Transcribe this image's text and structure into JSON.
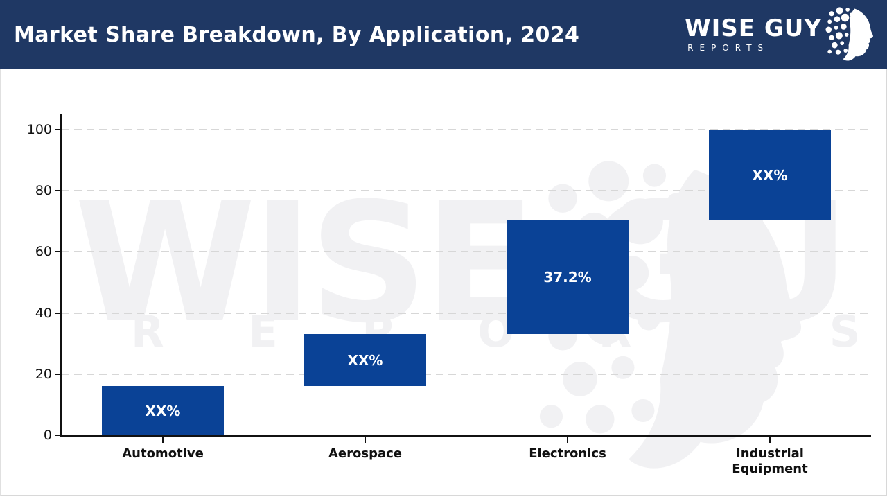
{
  "header": {
    "title": "Market Share Breakdown, By Application, 2024",
    "bg_color": "#1f3864",
    "logo": {
      "line1": "WISE GUY",
      "line2": "REPORTS"
    }
  },
  "watermark": {
    "line1": "WISE GU",
    "line2": "R E P O R T S"
  },
  "chart_data": {
    "type": "bar",
    "variant": "floating-waterfall",
    "title": "Market Share Breakdown, By Application, 2024",
    "categories": [
      "Automotive",
      "Aerospace",
      "Electronics",
      "Industrial Equipment"
    ],
    "bars": [
      {
        "category": "Automotive",
        "start": 0,
        "end": 16,
        "label": "XX%"
      },
      {
        "category": "Aerospace",
        "start": 16,
        "end": 33,
        "label": "XX%"
      },
      {
        "category": "Electronics",
        "start": 33,
        "end": 70.2,
        "label": "37.2%"
      },
      {
        "category": "Industrial Equipment",
        "start": 70.2,
        "end": 100,
        "label": "XX%"
      }
    ],
    "ylim": [
      0,
      100
    ],
    "yticks": [
      0,
      20,
      40,
      60,
      80,
      100
    ],
    "grid": "dashed-horizontal",
    "legend": "none",
    "bar_color": "#0a4296",
    "bar_label_color": "#ffffff",
    "axis_color": "#111111",
    "gridline_color": "#d7d7d7"
  }
}
